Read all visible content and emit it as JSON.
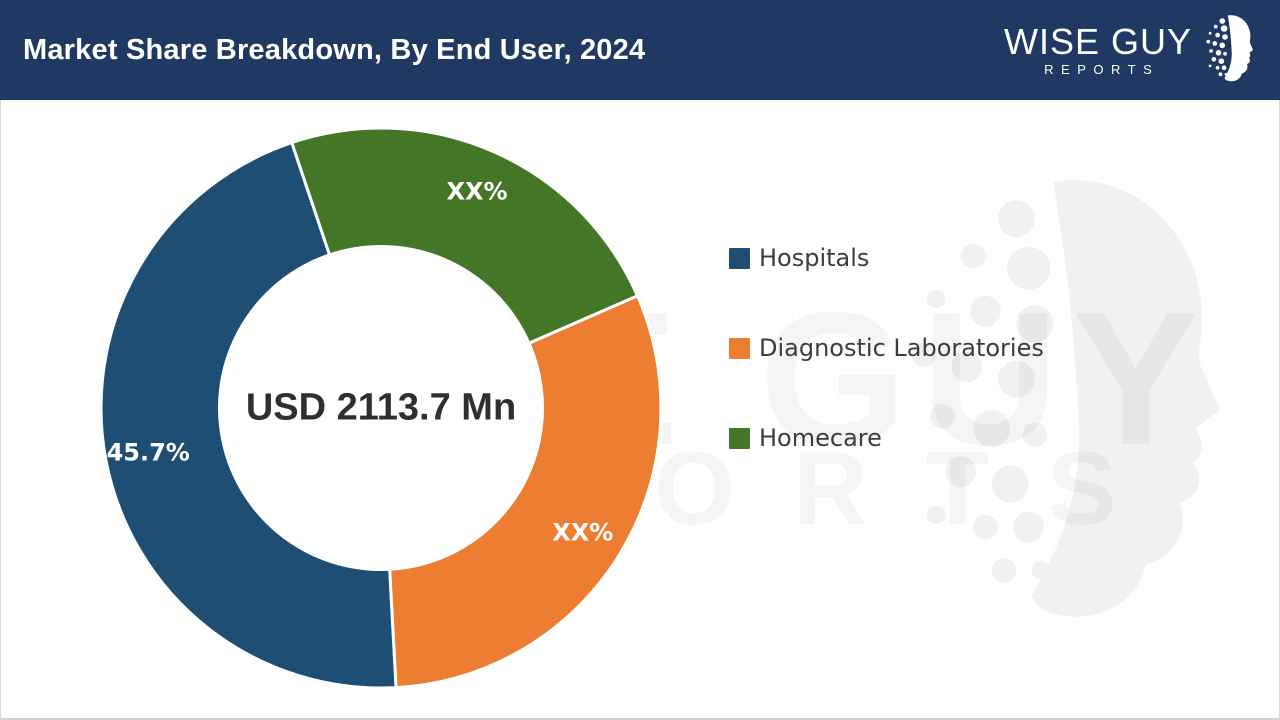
{
  "header": {
    "title": "Market Share Breakdown, By End User, 2024",
    "logo": {
      "line1": "WISE GUY",
      "line2": "REPORTS"
    }
  },
  "watermark": {
    "line1": "WISE GUY",
    "line2": "REPORTS"
  },
  "colors": {
    "header_bg": "#203963",
    "hospitals_blue": "#1f4e74",
    "diagnostic_orange": "#ed7d31",
    "homecare_green": "#447628",
    "center_text": "#2f2f2f"
  },
  "chart_data": {
    "type": "pie",
    "subtype": "donut",
    "title": "Market Share Breakdown, By End User, 2024",
    "center_label": "USD 2113.7 Mn",
    "legend_position": "right",
    "start_angle_deg_clockwise_from_top": 176.9,
    "slices": [
      {
        "name": "Hospitals",
        "label": "45.7%",
        "value_pct": 45.7,
        "color": "#1f4e74"
      },
      {
        "name": "Homecare",
        "label": "XX%",
        "value_pct": 23.6,
        "color": "#447628"
      },
      {
        "name": "Diagnostic Laboratories",
        "label": "XX%",
        "value_pct": 30.7,
        "color": "#ed7d31"
      }
    ]
  },
  "legend": {
    "items": [
      {
        "label": "Hospitals",
        "color": "#1f4e74"
      },
      {
        "label": "Diagnostic Laboratories",
        "color": "#ed7d31"
      },
      {
        "label": "Homecare",
        "color": "#447628"
      }
    ]
  }
}
